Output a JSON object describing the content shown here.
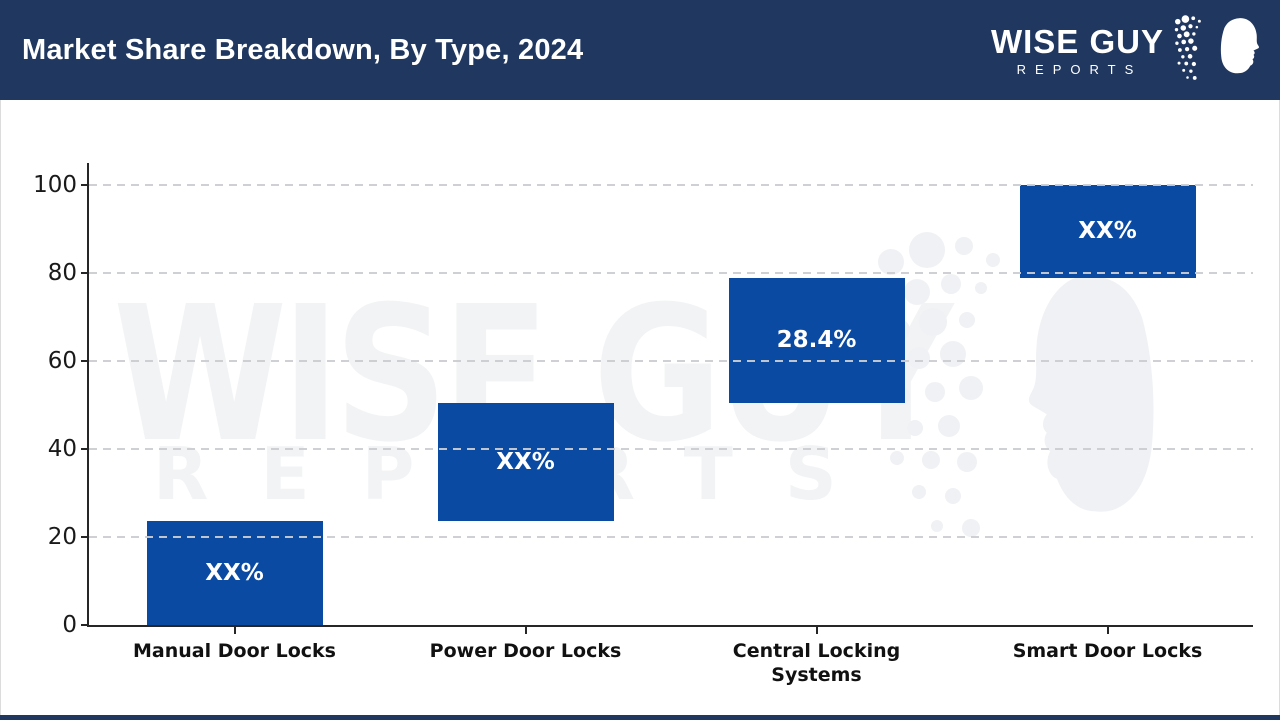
{
  "header": {
    "title": "Market Share Breakdown, By Type, 2024",
    "logo": {
      "line1": "WISE GUY",
      "line2": "REPORTS"
    }
  },
  "watermark": {
    "line1": "WISE GUY",
    "line2": "REPORTS"
  },
  "chart_data": {
    "type": "bar",
    "subtype": "waterfall",
    "title": "Market Share Breakdown, By Type, 2024",
    "categories": [
      "Manual Door Locks",
      "Power Door Locks",
      "Central Locking\nSystems",
      "Smart Door Locks"
    ],
    "series": [
      {
        "name": "Market Share",
        "segments": [
          {
            "category": "Manual Door Locks",
            "start": 0,
            "end": 23.6,
            "label": "XX%"
          },
          {
            "category": "Power Door Locks",
            "start": 23.6,
            "end": 50.5,
            "label": "XX%"
          },
          {
            "category": "Central Locking Systems",
            "start": 50.5,
            "end": 78.9,
            "label": "28.4%"
          },
          {
            "category": "Smart Door Locks",
            "start": 78.9,
            "end": 100,
            "label": "XX%"
          }
        ]
      }
    ],
    "yticks": [
      0,
      20,
      40,
      60,
      80,
      100
    ],
    "ylim": [
      0,
      105
    ],
    "xlabel": "",
    "ylabel": "",
    "grid": true,
    "grid_style": "dashed",
    "legend": false,
    "bar_color": "#0b4aa2",
    "value_label_color": "#ffffff"
  },
  "colors": {
    "header_bg": "#203760",
    "footer_bg": "#203760",
    "bar": "#0b4aa2",
    "axis": "#262626",
    "grid": "#d8d8d8",
    "watermark": "#f2f3f5"
  }
}
